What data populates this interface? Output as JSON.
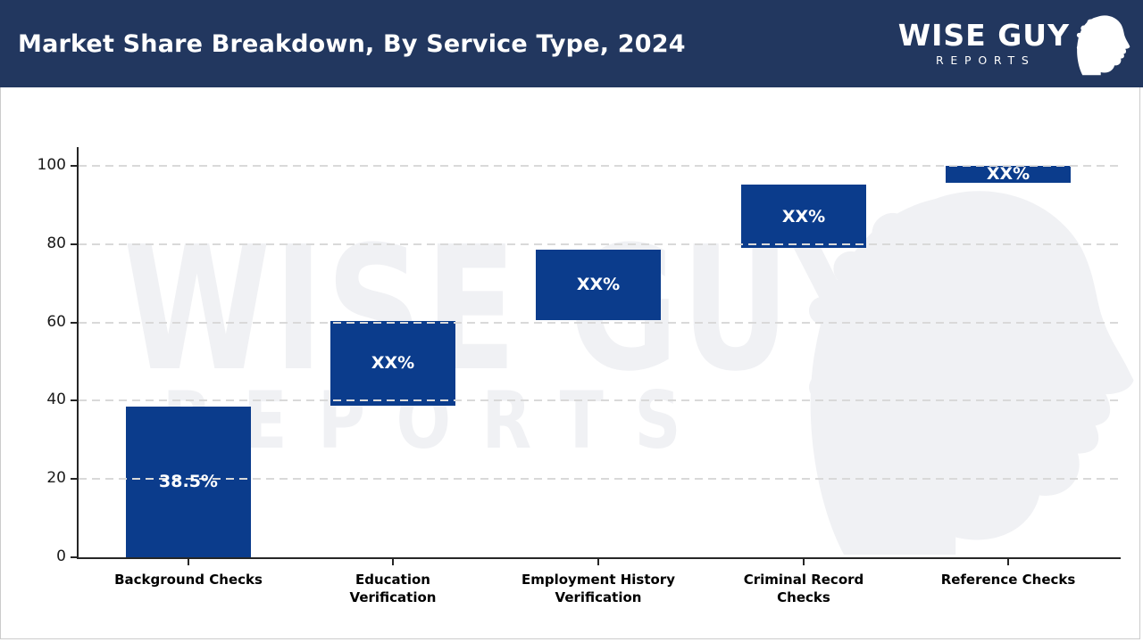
{
  "header": {
    "title": "Market Share Breakdown, By Service Type, 2024",
    "logo": {
      "brand": "WISE GUY",
      "sub": "REPORTS"
    }
  },
  "watermark": {
    "line1": "WISE GUY",
    "line2": "REPORTS"
  },
  "colors": {
    "header_bg": "#22375F",
    "bar": "#0B3C8C",
    "grid": "#D9D9D9",
    "axis": "#262626",
    "tick_label": "#1A1A1A",
    "bar_label": "#FFFFFF",
    "watermark": "#F0F1F4",
    "border": "#CBCBCB"
  },
  "chart_data": {
    "type": "bar",
    "subtype": "waterfall",
    "title": "Market Share Breakdown, By Service Type, 2024",
    "categories": [
      "Background Checks",
      "Education Verification",
      "Employment History Verification",
      "Criminal Record Checks",
      "Reference Checks"
    ],
    "category_lines": [
      [
        "Background Checks"
      ],
      [
        "Education",
        "Verification"
      ],
      [
        "Employment History",
        "Verification"
      ],
      [
        "Criminal Record",
        "Checks"
      ],
      [
        "Reference Checks"
      ]
    ],
    "segments": [
      {
        "category": "Background Checks",
        "start": 0,
        "end": 38.5,
        "label": "38.5%"
      },
      {
        "category": "Education Verification",
        "start": 38.8,
        "end": 60.3,
        "label": "XX%"
      },
      {
        "category": "Employment History Verification",
        "start": 60.6,
        "end": 78.6,
        "label": "XX%"
      },
      {
        "category": "Criminal Record Checks",
        "start": 79.0,
        "end": 95.2,
        "label": "XX%"
      },
      {
        "category": "Reference Checks",
        "start": 95.6,
        "end": 100.1,
        "label": "XX%"
      }
    ],
    "xlabel": "",
    "ylabel": "",
    "yticks": [
      0,
      20,
      40,
      60,
      80,
      100
    ],
    "ylim": [
      0,
      105
    ],
    "grid": {
      "horizontal": true,
      "style": "dashed",
      "drawn_over_bars": true
    },
    "legend": null,
    "watermark_text": "WISE GUY REPORTS"
  }
}
